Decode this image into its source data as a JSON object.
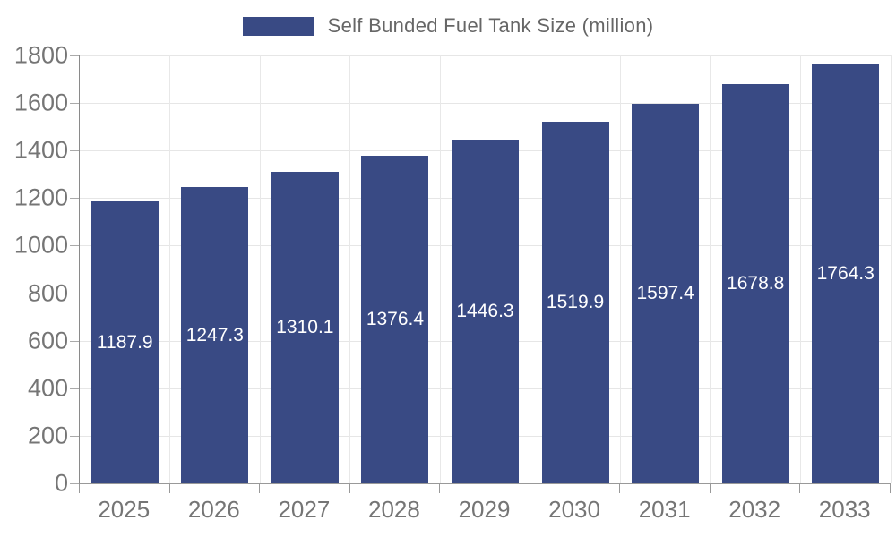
{
  "chart_data": {
    "type": "bar",
    "title": "",
    "legend": "Self Bunded Fuel Tank Size (million)",
    "legend_position": "top-center",
    "categories": [
      "2025",
      "2026",
      "2027",
      "2028",
      "2029",
      "2030",
      "2031",
      "2032",
      "2033"
    ],
    "values": [
      1187.9,
      1247.3,
      1310.1,
      1376.4,
      1446.3,
      1519.9,
      1597.4,
      1678.8,
      1764.3
    ],
    "xlabel": "",
    "ylabel": "",
    "ylim": [
      0,
      1800
    ],
    "yticks": [
      0,
      200,
      400,
      600,
      800,
      1000,
      1200,
      1400,
      1600,
      1800
    ],
    "grid": true,
    "bar_color": "#394a84",
    "value_label_color": "#ffffff",
    "axis_text_color": "#757575",
    "legend_text_color": "#666666",
    "gridline_color": "#e6e6e6"
  }
}
